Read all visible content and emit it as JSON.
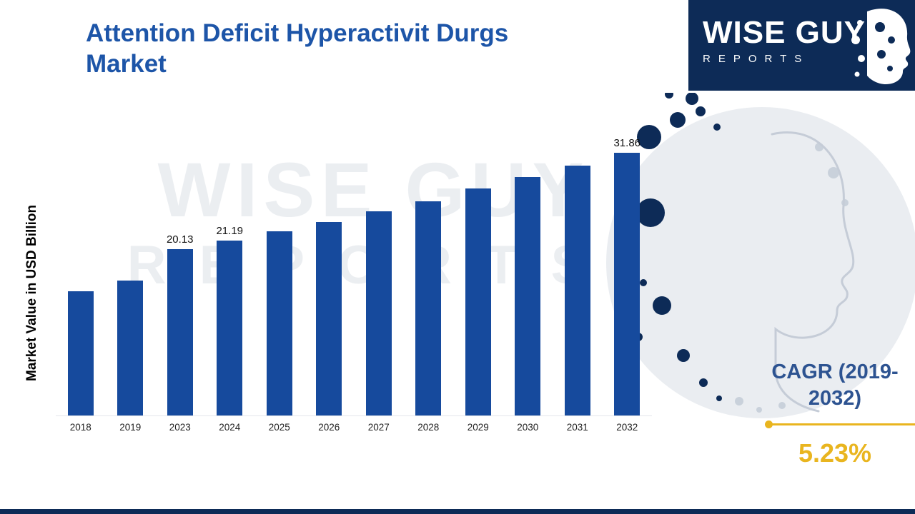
{
  "page": {
    "title": "Attention Deficit Hyperactivit Durgs Market"
  },
  "logo": {
    "line1": "WISE GUY",
    "line2": "REPORTS"
  },
  "watermark": {
    "line1": "WISE GUY",
    "line2": "REPORTS"
  },
  "chart_data": {
    "type": "bar",
    "title": "Attention Deficit Hyperactivit Durgs Market",
    "xlabel": "",
    "ylabel": "Market Value in USD Billion",
    "categories": [
      "2018",
      "2019",
      "2023",
      "2024",
      "2025",
      "2026",
      "2027",
      "2028",
      "2029",
      "2030",
      "2031",
      "2032"
    ],
    "values": [
      15.1,
      16.4,
      20.13,
      21.19,
      22.3,
      23.5,
      24.8,
      26.0,
      27.5,
      28.9,
      30.3,
      31.86
    ],
    "data_labels": [
      "",
      "",
      "20.13",
      "21.19",
      "",
      "",
      "",
      "",
      "",
      "",
      "",
      "31.86"
    ],
    "bar_color": "#164a9d",
    "ylim": [
      0,
      34
    ],
    "grid": false,
    "legend": false
  },
  "cagr": {
    "label": "CAGR (2019-2032)",
    "value": "5.23%"
  },
  "colors": {
    "title_blue": "#1d55a8",
    "bar_navy": "#164a9d",
    "logo_navy": "#0d2b57",
    "gold": "#e9b51f",
    "cagr_text": "#2d5391",
    "circle_gray": "#eaedf1"
  }
}
